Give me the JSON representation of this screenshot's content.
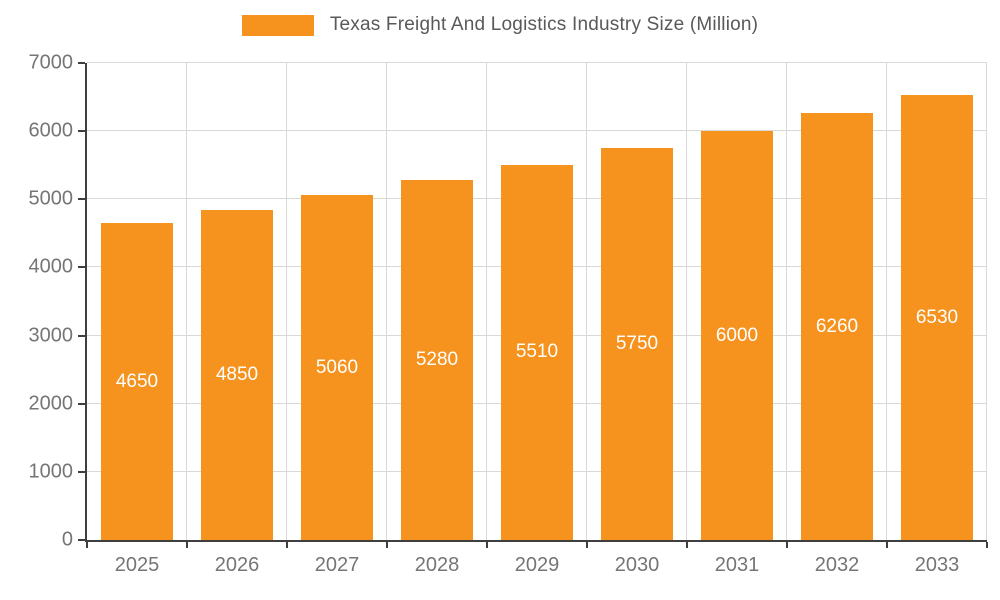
{
  "chart_data": {
    "type": "bar",
    "title": "Texas Freight And Logistics Industry Size (Million)",
    "categories": [
      "2025",
      "2026",
      "2027",
      "2028",
      "2029",
      "2030",
      "2031",
      "2032",
      "2033"
    ],
    "values": [
      4650,
      4850,
      5060,
      5280,
      5510,
      5750,
      6000,
      6260,
      6530
    ],
    "xlabel": "",
    "ylabel": "",
    "ylim": [
      0,
      7000
    ],
    "ytick_step": 1000,
    "yticks": [
      0,
      1000,
      2000,
      3000,
      4000,
      5000,
      6000,
      7000
    ],
    "grid": true,
    "legend_position": "top",
    "bar_color": "#f6921e",
    "bar_label_color": "#ffffff",
    "axis_color": "#3f3f3f",
    "grid_color": "#d9d9d9",
    "tick_label_color": "#757575",
    "title_color": "#595959"
  }
}
